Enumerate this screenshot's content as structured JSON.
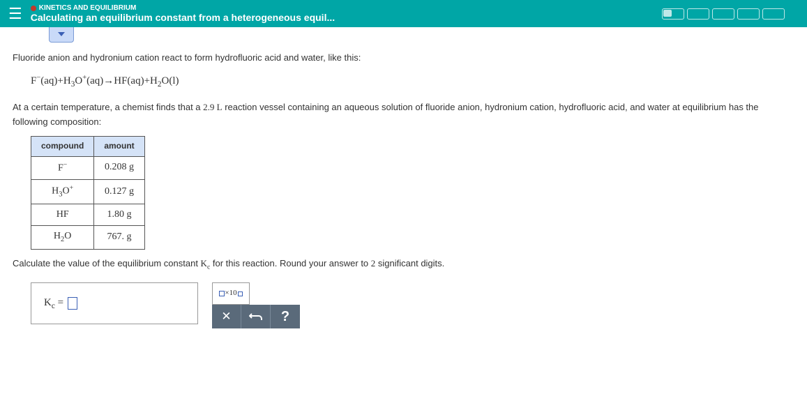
{
  "header": {
    "category": "KINETICS AND EQUILIBRIUM",
    "title": "Calculating an equilibrium constant from a heterogeneous equil...",
    "progress_total": 5,
    "progress_filled": 1
  },
  "problem": {
    "intro": "Fluoride anion and hydronium cation react to form hydrofluoric acid and water, like this:",
    "equation_html": "F<sup>−</sup>(aq)+H<span class='sub'>3</span>O<sup>+</sup>(aq)→HF(aq)+H<span class='sub'>2</span>O(l)",
    "setup_prefix": "At a certain temperature, a chemist finds that a ",
    "volume": "2.9 L",
    "setup_suffix": " reaction vessel containing an aqueous solution of fluoride anion, hydronium cation, hydrofluoric acid, and water at equilibrium has the following composition:",
    "table": {
      "headers": [
        "compound",
        "amount"
      ],
      "rows": [
        {
          "compound_html": "F<sup>−</sup>",
          "amount": "0.208 g"
        },
        {
          "compound_html": "H<span class='sub'>3</span>O<sup>+</sup>",
          "amount": "0.127 g"
        },
        {
          "compound_html": "HF",
          "amount": "1.80 g"
        },
        {
          "compound_html": "H<span class='sub'>2</span>O",
          "amount": "767. g"
        }
      ]
    },
    "question_prefix": "Calculate the value of the equilibrium constant ",
    "kc_html": "K<span class='sub'>c</span>",
    "question_suffix_a": " for this reaction. Round your answer to ",
    "sigfigs": "2",
    "question_suffix_b": " significant digits."
  },
  "answer": {
    "label_html": "K<span class='sub'>c</span> = ",
    "sci_label": "×10"
  },
  "colors": {
    "header_bg": "#00a6a6",
    "table_header_bg": "#d5e3f7",
    "tool_bg": "#5a6a7a",
    "dropdown_bg": "#c9daf8"
  }
}
